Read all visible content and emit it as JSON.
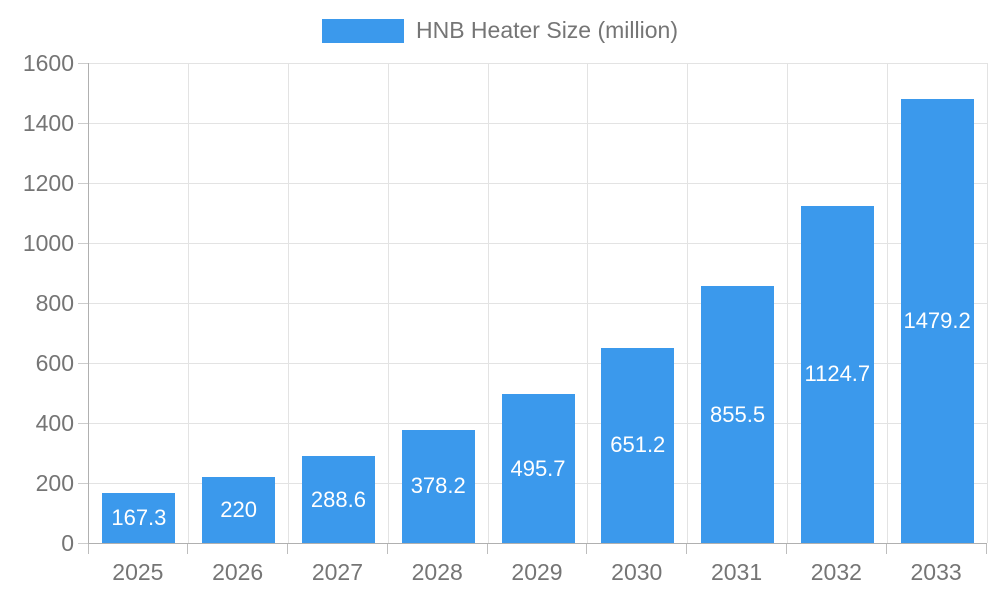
{
  "chart_data": {
    "type": "bar",
    "title": "",
    "legend": "HNB Heater Size (million)",
    "legend_position": "top-center",
    "categories": [
      "2025",
      "2026",
      "2027",
      "2028",
      "2029",
      "2030",
      "2031",
      "2032",
      "2033"
    ],
    "series": [
      {
        "name": "HNB Heater Size (million)",
        "values": [
          167.3,
          220,
          288.6,
          378.2,
          495.7,
          651.2,
          855.5,
          1124.7,
          1479.2
        ],
        "value_labels": [
          "167.3",
          "220",
          "288.6",
          "378.2",
          "495.7",
          "651.2",
          "855.5",
          "1124.7",
          "1479.2"
        ]
      }
    ],
    "xlabel": "",
    "ylabel": "",
    "ylim": [
      0,
      1600
    ],
    "ytick_step": 200,
    "yticks": [
      0,
      200,
      400,
      600,
      800,
      1000,
      1200,
      1400,
      1600
    ],
    "grid": true,
    "value_labels_inside_bars": true
  },
  "colors": {
    "bar": "#3b99ec",
    "value_label": "#ffffff",
    "axis_text": "#757575",
    "grid": "#e3e3e3",
    "axis_line": "#b0b0b0",
    "background": "#ffffff"
  }
}
